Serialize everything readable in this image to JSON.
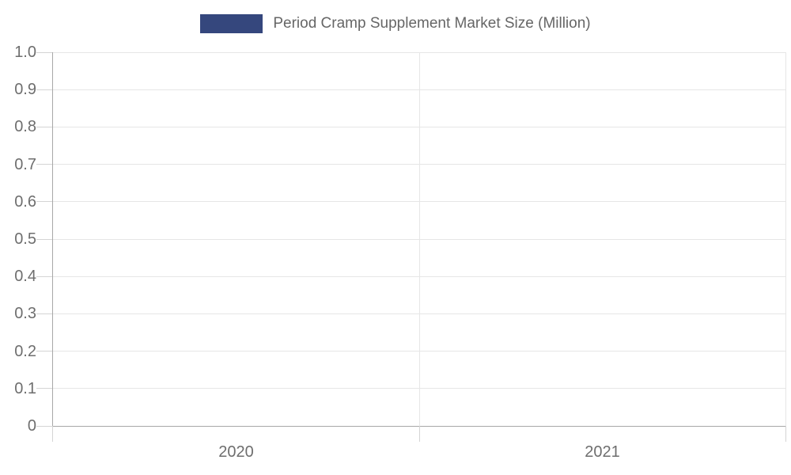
{
  "chart": {
    "legend": {
      "label": "Period Cramp Supplement Market Size (Million)",
      "swatch_color": "#35477d"
    },
    "colors": {
      "grid": "#e6e6e6",
      "axis": "#a8a8a8",
      "tick": "#d4d4d4",
      "text": "#6e6e6e",
      "legend_text": "#666666"
    }
  },
  "chart_data": {
    "type": "bar",
    "title": "Period Cramp Supplement Market Size (Million)",
    "categories": [
      "2020",
      "2021"
    ],
    "series": [
      {
        "name": "Period Cramp Supplement Market Size (Million)",
        "color": "#35477d",
        "values": []
      }
    ],
    "xlabel": "",
    "ylabel": "",
    "ylim": [
      0,
      1.0
    ],
    "yticks": [
      "0",
      "0.1",
      "0.2",
      "0.3",
      "0.4",
      "0.5",
      "0.6",
      "0.7",
      "0.8",
      "0.9",
      "1.0"
    ],
    "grid": true,
    "legend_position": "top",
    "plot_is_empty": true
  }
}
